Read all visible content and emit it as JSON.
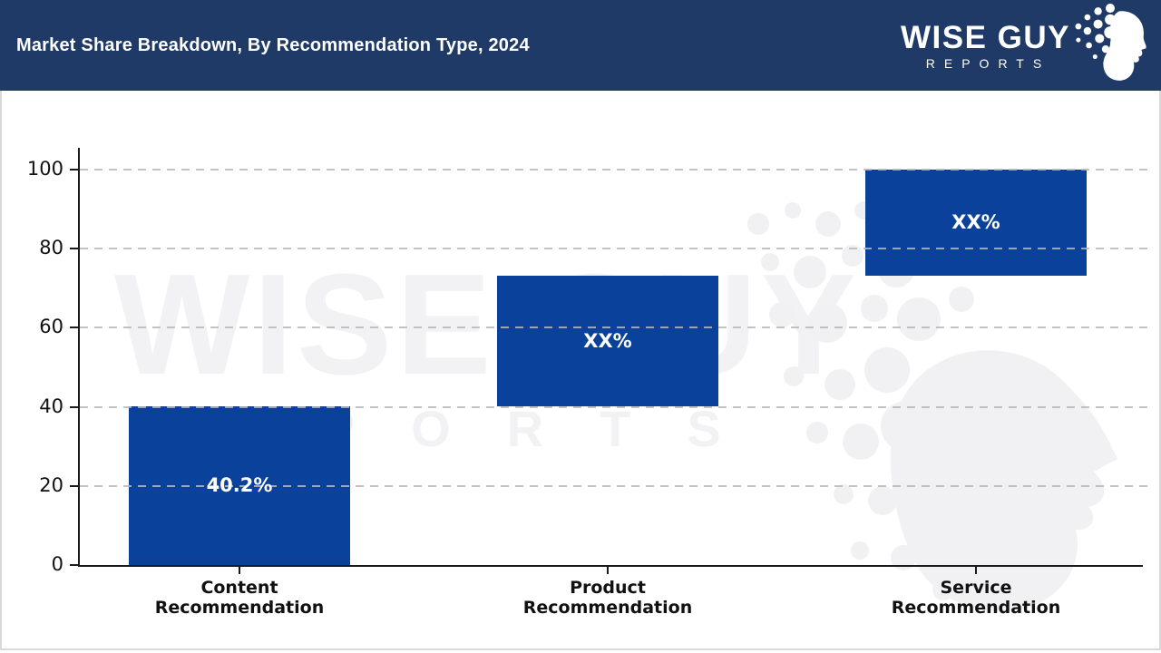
{
  "header": {
    "title": "Market Share Breakdown, By Recommendation Type, 2024",
    "bg_color": "#1f3a67",
    "logo": {
      "line1": "WISE GUY",
      "line2": "REPORTS"
    }
  },
  "watermark": {
    "line1": "WISE GUY",
    "line2": "REPORTS"
  },
  "chart_data": {
    "type": "bar",
    "variant": "stacked-waterfall-segments",
    "title": "Market Share Breakdown, By Recommendation Type, 2024",
    "categories": [
      {
        "lines": [
          "Content",
          "Recommendation"
        ]
      },
      {
        "lines": [
          "Product",
          "Recommendation"
        ]
      },
      {
        "lines": [
          "Service",
          "Recommendation"
        ]
      }
    ],
    "segments": [
      {
        "category": "Content Recommendation",
        "start": 0,
        "end": 40.2,
        "label": "40.2%"
      },
      {
        "category": "Product Recommendation",
        "start": 40.2,
        "end": 73.2,
        "label": "XX%"
      },
      {
        "category": "Service Recommendation",
        "start": 73.2,
        "end": 100,
        "label": "XX%"
      }
    ],
    "y_ticks": [
      0,
      20,
      40,
      60,
      80,
      100
    ],
    "ylim": [
      0,
      100
    ],
    "grid": true,
    "grid_style": "dashed",
    "legend": "none",
    "bar_color": "#0a429b",
    "bar_label_color": "#ffffff",
    "axis_color": "#1a1a1a",
    "xlabel": "",
    "ylabel": ""
  }
}
